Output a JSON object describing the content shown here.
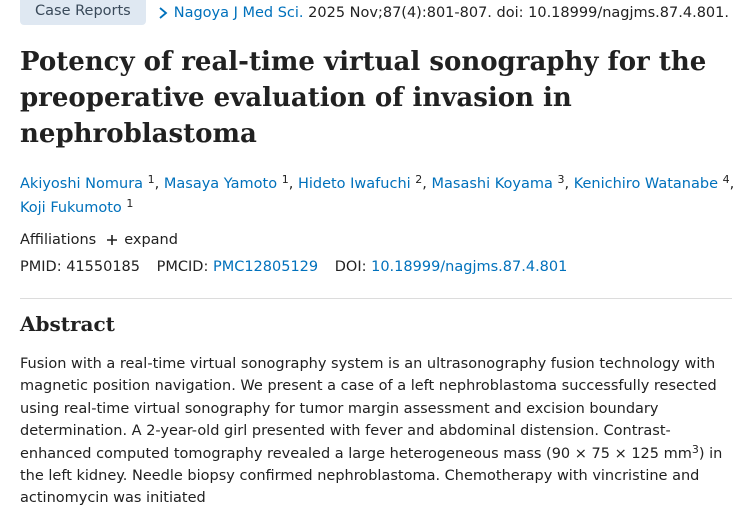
{
  "header": {
    "tag": "Case Reports",
    "journal": "Nagoya J Med Sci.",
    "citation": "2025 Nov;87(4):801-807. doi: 10.18999/nagjms.87.4.801."
  },
  "title": "Potency of real-time virtual sonography for the preoperative evaluation of invasion in nephroblastoma",
  "authors": [
    {
      "name": "Akiyoshi Nomura",
      "aff": "1"
    },
    {
      "name": "Masaya Yamoto",
      "aff": "1"
    },
    {
      "name": "Hideto Iwafuchi",
      "aff": "2"
    },
    {
      "name": "Masashi Koyama",
      "aff": "3"
    },
    {
      "name": "Kenichiro Watanabe",
      "aff": "4"
    },
    {
      "name": "Koji Fukumoto",
      "aff": "1"
    }
  ],
  "author_separator": ",",
  "affiliations": {
    "label": "Affiliations",
    "toggle": "expand"
  },
  "ids": {
    "pmid_label": "PMID:",
    "pmid": "41550185",
    "pmcid_label": "PMCID:",
    "pmcid": "PMC12805129",
    "doi_label": "DOI:",
    "doi": "10.18999/nagjms.87.4.801"
  },
  "abstract": {
    "heading": "Abstract",
    "text_before": "Fusion with a real-time virtual sonography system is an ultrasonography fusion technology with magnetic position navigation. We present a case of a left nephroblastoma successfully resected using real-time virtual sonography for tumor margin assessment and excision boundary determination. A 2-year-old girl presented with fever and abdominal distension. Contrast-enhanced computed tomography revealed a large heterogeneous mass (90 × 75 × 125 mm",
    "superscript": "3",
    "text_after": ") in the left kidney. Needle biopsy confirmed nephroblastoma. Chemotherapy with vincristine and actinomycin was initiated"
  }
}
